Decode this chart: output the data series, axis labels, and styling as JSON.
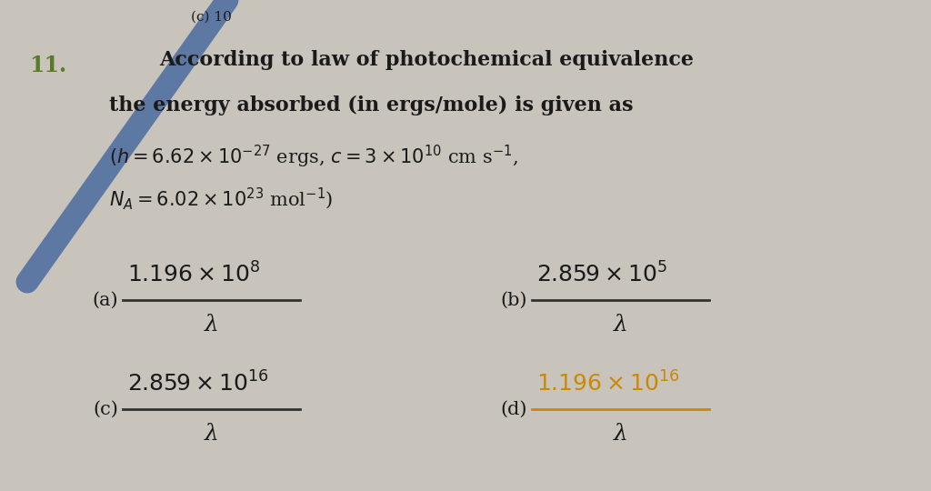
{
  "background_color": "#c8c4bc",
  "page_color": "#dedad4",
  "title_number": "11.",
  "title_color": "#5a7a2a",
  "blue_stripe_color": "#3a5f9a",
  "text_color": "#1a1a1a",
  "fraction_line_color": "#333333",
  "highlight_num_color": "#cc8800",
  "fraction_line_highlight": "#cc8800",
  "line1a": "According to law of photochemical equivalence",
  "line2": "the energy absorbed (in ergs/mole) is given as",
  "line3a": "(h = 6.62 × 10",
  "line3b": "−27",
  "line3c": " ergs, c = 3 × 10",
  "line3d": "10",
  "line3e": " cm s",
  "line3f": "−1",
  "line3g": ",",
  "line4a": "N",
  "line4b": "A",
  "line4c": " = 6.02 × 10",
  "line4d": "23",
  "line4e": " mol",
  "line4f": "−1",
  "line4g": ")",
  "opt_a_label": "(a)",
  "opt_a_num": "1.196×10",
  "opt_a_exp": "8",
  "opt_a_den": "λ",
  "opt_b_label": "(b)",
  "opt_b_num": "2.859×10",
  "opt_b_exp": "5",
  "opt_b_den": "λ",
  "opt_c_label": "(c)",
  "opt_c_num": "2.859×10",
  "opt_c_exp": "16",
  "opt_c_den": "λ",
  "opt_d_label": "(d)",
  "opt_d_num": "1.196×10",
  "opt_d_exp": "16",
  "opt_d_den": "λ"
}
